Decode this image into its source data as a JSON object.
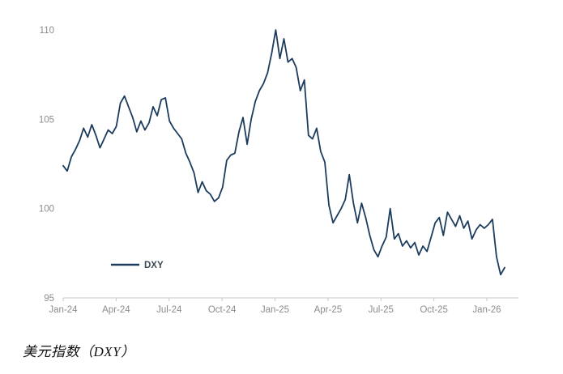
{
  "page": {
    "background_color": "#ffffff"
  },
  "caption": {
    "text": "美元指数（DXY）"
  },
  "legend": {
    "label": "DXY",
    "position": "lower-left"
  },
  "chart_data": {
    "type": "line",
    "title": "",
    "xlabel": "",
    "ylabel": "",
    "grid": false,
    "ylim": [
      95,
      110
    ],
    "y_ticks": [
      95,
      100,
      105,
      110
    ],
    "x_tick_labels": [
      "Jan-24",
      "Apr-24",
      "Jul-24",
      "Oct-24",
      "Jan-25",
      "Apr-25",
      "Jul-25",
      "Oct-25",
      "Jan-26"
    ],
    "x_range_note": "weekly data, Jan-2024 through mid-Feb-2026",
    "line_color": "#1c3c5e",
    "axis_color": "#c9c9c9",
    "tick_label_color": "#8c8c8c",
    "series": [
      {
        "name": "DXY",
        "color": "#1c3c5e",
        "values": [
          102.4,
          102.1,
          102.9,
          103.3,
          103.8,
          104.5,
          104.0,
          104.7,
          104.1,
          103.4,
          103.9,
          104.4,
          104.2,
          104.6,
          105.9,
          106.3,
          105.7,
          105.1,
          104.3,
          104.9,
          104.4,
          104.8,
          105.7,
          105.2,
          106.1,
          106.2,
          104.9,
          104.5,
          104.2,
          103.9,
          103.1,
          102.6,
          102.0,
          100.9,
          101.5,
          101.0,
          100.8,
          100.4,
          100.6,
          101.2,
          102.7,
          103.0,
          103.1,
          104.3,
          105.1,
          103.6,
          105.0,
          106.0,
          106.6,
          107.0,
          107.6,
          108.7,
          110.0,
          108.4,
          109.5,
          108.2,
          108.4,
          107.9,
          106.6,
          107.2,
          104.1,
          103.9,
          104.5,
          103.2,
          102.6,
          100.2,
          99.2,
          99.6,
          100.0,
          100.5,
          101.9,
          100.3,
          99.2,
          100.3,
          99.5,
          98.5,
          97.7,
          97.3,
          97.9,
          98.4,
          100.0,
          98.3,
          98.6,
          97.9,
          98.2,
          97.8,
          98.1,
          97.4,
          97.9,
          97.6,
          98.4,
          99.2,
          99.5,
          98.5,
          99.8,
          99.4,
          99.0,
          99.6,
          98.9,
          99.3,
          98.3,
          98.8,
          99.1,
          98.9,
          99.1,
          99.4,
          97.3,
          96.3,
          96.7
        ]
      }
    ]
  }
}
